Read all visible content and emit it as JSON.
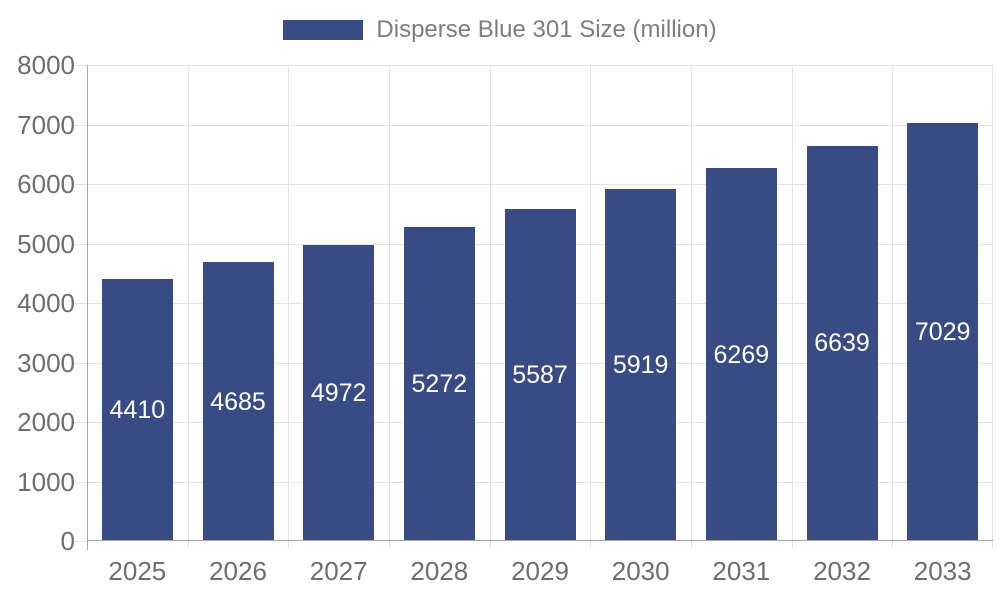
{
  "chart_data": {
    "type": "bar",
    "title": "",
    "legend_label": "Disperse Blue 301 Size (million)",
    "legend_position": "top-center",
    "categories": [
      "2025",
      "2026",
      "2027",
      "2028",
      "2029",
      "2030",
      "2031",
      "2032",
      "2033"
    ],
    "values": [
      4410,
      4685,
      4972,
      5272,
      5587,
      5919,
      6269,
      6639,
      7029
    ],
    "xlabel": "",
    "ylabel": "",
    "ylim": [
      0,
      8000
    ],
    "y_ticks": [
      0,
      1000,
      2000,
      3000,
      4000,
      5000,
      6000,
      7000,
      8000
    ],
    "grid": true,
    "value_labels": "centered-inside-bars",
    "colors": {
      "bar": "#394B84",
      "bar_value_text": "#FFFFFF",
      "grid": "#E3E3E3",
      "axis": "#A6A6A6",
      "tick_text": "#6E6E6E",
      "legend_text": "#7D7D7D",
      "background": "#FFFFFF"
    }
  }
}
